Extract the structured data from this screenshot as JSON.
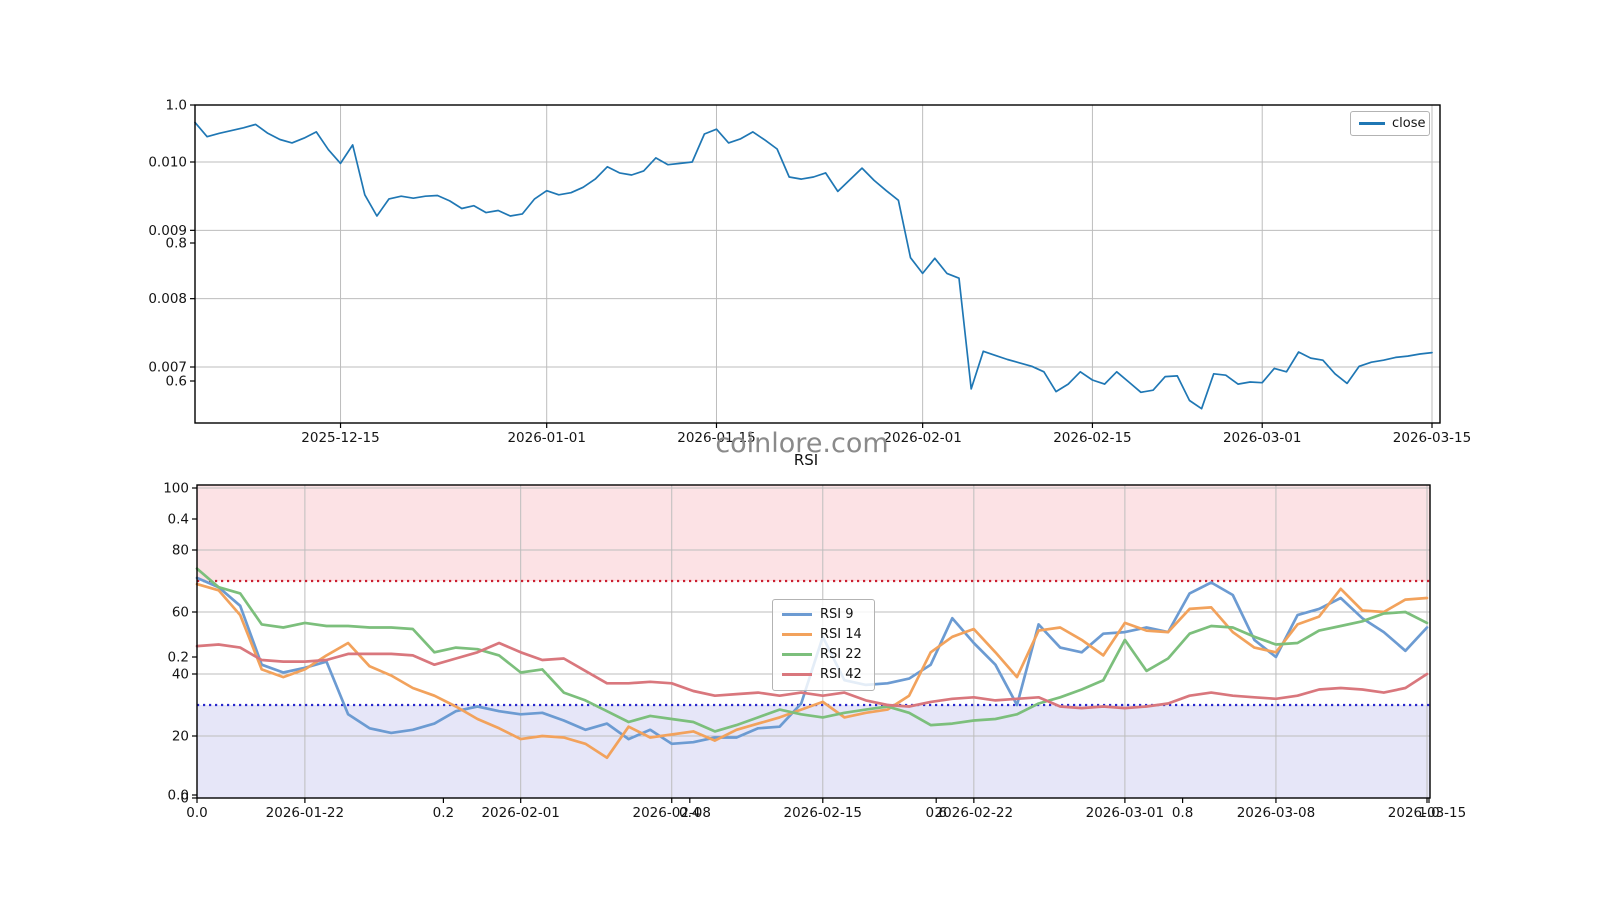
{
  "watermark": "coinlore.com",
  "colors": {
    "background": "#ffffff",
    "grid": "#bdbdbd",
    "spine": "#000000",
    "tick_text": "#141414",
    "watermark_text": "#8a8a8a",
    "close_line": "#1f77b4",
    "rsi9_line": "#6c9bd2",
    "rsi14_line": "#f2a25c",
    "rsi22_line": "#7cbf7c",
    "rsi42_line": "#d9777d",
    "overbought_band": "#fce2e5",
    "oversold_band": "#e6e6f8",
    "overbought_dotted": "#cb2030",
    "oversold_dotted": "#2828cc"
  },
  "chart_data": [
    {
      "type": "line",
      "name": "price-close",
      "title": "",
      "xlabel": "",
      "ylabel": "",
      "grid": true,
      "legend_position": "upper right",
      "start_date": "2025-12-03",
      "frequency": "daily",
      "ylim": [
        0.0062,
        0.01085
      ],
      "x_ticks": [
        {
          "label": "2025-12-15",
          "day": 12
        },
        {
          "label": "2026-01-01",
          "day": 29
        },
        {
          "label": "2026-01-15",
          "day": 43
        },
        {
          "label": "2026-02-01",
          "day": 60
        },
        {
          "label": "2026-02-15",
          "day": 74
        },
        {
          "label": "2026-03-01",
          "day": 88
        },
        {
          "label": "2026-03-15",
          "day": 102
        }
      ],
      "y_ticks": [
        {
          "label": "0.010",
          "value": 0.01
        },
        {
          "label": "0.009",
          "value": 0.009
        },
        {
          "label": "0.008",
          "value": 0.008
        },
        {
          "label": "0.007",
          "value": 0.007
        }
      ],
      "secondary_y_tick_labels": [
        "1.0",
        "0.8",
        "0.6"
      ],
      "series": [
        {
          "name": "close",
          "color": "#1f77b4",
          "values": [
            0.01058,
            0.01037,
            0.01042,
            0.01046,
            0.0105,
            0.01055,
            0.01042,
            0.01033,
            0.01028,
            0.01035,
            0.01044,
            0.01018,
            0.00998,
            0.01025,
            0.00952,
            0.00921,
            0.00946,
            0.0095,
            0.00947,
            0.0095,
            0.00951,
            0.00943,
            0.00932,
            0.00936,
            0.00926,
            0.00929,
            0.00921,
            0.00924,
            0.00946,
            0.00958,
            0.00952,
            0.00955,
            0.00963,
            0.00975,
            0.00993,
            0.00984,
            0.00981,
            0.00987,
            0.01006,
            0.00996,
            0.00998,
            0.01,
            0.01041,
            0.01048,
            0.01028,
            0.01034,
            0.01044,
            0.01032,
            0.01019,
            0.00978,
            0.00975,
            0.00978,
            0.00984,
            0.00957,
            0.00974,
            0.00991,
            0.00973,
            0.00958,
            0.00944,
            0.0086,
            0.00837,
            0.00859,
            0.00837,
            0.0083,
            0.00668,
            0.00723,
            0.00717,
            0.00711,
            0.00706,
            0.00701,
            0.00693,
            0.00664,
            0.00675,
            0.00693,
            0.00681,
            0.00675,
            0.00693,
            0.00678,
            0.00663,
            0.00666,
            0.00686,
            0.00687,
            0.00651,
            0.00639,
            0.0069,
            0.00688,
            0.00675,
            0.00678,
            0.00677,
            0.00698,
            0.00693,
            0.00722,
            0.00713,
            0.0071,
            0.0069,
            0.00676,
            0.00701,
            0.00707,
            0.0071,
            0.00714,
            0.00716,
            0.00719,
            0.00721
          ]
        }
      ]
    },
    {
      "type": "line",
      "name": "rsi",
      "title": "RSI",
      "xlabel": "",
      "ylabel": "",
      "grid": true,
      "legend_position": "center",
      "start_date": "2026-01-17",
      "frequency": "daily",
      "ylim": [
        0,
        101
      ],
      "x_ticks": [
        {
          "label": "2026-01-22",
          "day": 5
        },
        {
          "label": "2026-02-01",
          "day": 15
        },
        {
          "label": "2026-02-08",
          "day": 22
        },
        {
          "label": "2026-02-15",
          "day": 29
        },
        {
          "label": "2026-02-22",
          "day": 36
        },
        {
          "label": "2026-03-01",
          "day": 43
        },
        {
          "label": "2026-03-08",
          "day": 50
        },
        {
          "label": "2026-03-15",
          "day": 57
        }
      ],
      "y_ticks": [
        {
          "label": "100",
          "value": 100
        },
        {
          "label": "80",
          "value": 80
        },
        {
          "label": "60",
          "value": 60
        },
        {
          "label": "40",
          "value": 40
        },
        {
          "label": "20",
          "value": 20
        },
        {
          "label": "0",
          "value": 0
        }
      ],
      "secondary_y_tick_labels": [
        "0.4",
        "0.2",
        "0.0"
      ],
      "secondary_x_tick_labels": [
        "0.0",
        "0.2",
        "0.4",
        "0.6",
        "0.8",
        "1.0"
      ],
      "overbought_band": {
        "from": 70,
        "to": 101,
        "color": "#fce2e5"
      },
      "oversold_band": {
        "from": 0,
        "to": 30,
        "color": "#e6e6f8"
      },
      "threshold_lines": [
        {
          "value": 70,
          "style": "dotted",
          "color": "#cb2030"
        },
        {
          "value": 30,
          "style": "dotted",
          "color": "#2828cc"
        }
      ],
      "series": [
        {
          "name": "RSI 9",
          "color": "#6c9bd2",
          "values": [
            71,
            68,
            62,
            43,
            40.5,
            42,
            44,
            27,
            22.5,
            21,
            22,
            24,
            28,
            29.5,
            28,
            27,
            27.5,
            25,
            22,
            24,
            19,
            22,
            17.5,
            18,
            19.5,
            19.5,
            22.5,
            23,
            30.5,
            52,
            38,
            36.5,
            37,
            38.5,
            43,
            58,
            50,
            43,
            30,
            56,
            48.5,
            47,
            53,
            53.5,
            55,
            53.5,
            66,
            69.5,
            65.5,
            51,
            45.5,
            59,
            61,
            64.5,
            58,
            53.5,
            47.5,
            55
          ]
        },
        {
          "name": "RSI 14",
          "color": "#f2a25c",
          "values": [
            69,
            67,
            59,
            41.5,
            39,
            41.5,
            46,
            50,
            42.5,
            39.5,
            35.5,
            33,
            29.5,
            25.5,
            22.5,
            19,
            20,
            19.5,
            17.5,
            13,
            23,
            19.5,
            20.5,
            21.5,
            18.5,
            22,
            24,
            26,
            28.5,
            31,
            26,
            27.5,
            28.5,
            33,
            47,
            52,
            54.5,
            47,
            39,
            54,
            55,
            51,
            46,
            56.5,
            54,
            53.5,
            61,
            61.5,
            53.5,
            48.5,
            47,
            56,
            58.5,
            67.5,
            60.5,
            60,
            64,
            64.5
          ]
        },
        {
          "name": "RSI 22",
          "color": "#7cbf7c",
          "values": [
            74,
            68,
            66,
            56,
            55,
            56.5,
            55.5,
            55.5,
            55,
            55,
            54.5,
            47,
            48.5,
            48,
            46,
            40.5,
            41.5,
            34,
            31.5,
            28,
            24.5,
            26.5,
            25.5,
            24.5,
            21.5,
            23.5,
            26,
            28.5,
            27,
            26,
            27.5,
            28.5,
            29.5,
            27.5,
            23.5,
            24,
            25,
            25.5,
            27,
            30.5,
            32.5,
            35,
            38,
            51,
            41,
            45,
            53,
            55.5,
            55,
            52,
            49.5,
            50,
            54,
            55.5,
            57,
            59.5,
            60,
            56.5
          ]
        },
        {
          "name": "RSI 42",
          "color": "#d9777d",
          "values": [
            49,
            49.5,
            48.5,
            44.5,
            44,
            44,
            44.5,
            46.5,
            46.5,
            46.5,
            46,
            43,
            45,
            47,
            50,
            47,
            44.5,
            45,
            41,
            37,
            37,
            37.5,
            37,
            34.5,
            33,
            33.5,
            34,
            33,
            34,
            33,
            34,
            31.5,
            30,
            29.5,
            31,
            32,
            32.5,
            31.5,
            32,
            32.5,
            29.5,
            29,
            29.5,
            29,
            29.5,
            30.5,
            33,
            34,
            33,
            32.5,
            32,
            33,
            35,
            35.5,
            35,
            34,
            35.5,
            40
          ]
        }
      ]
    }
  ]
}
